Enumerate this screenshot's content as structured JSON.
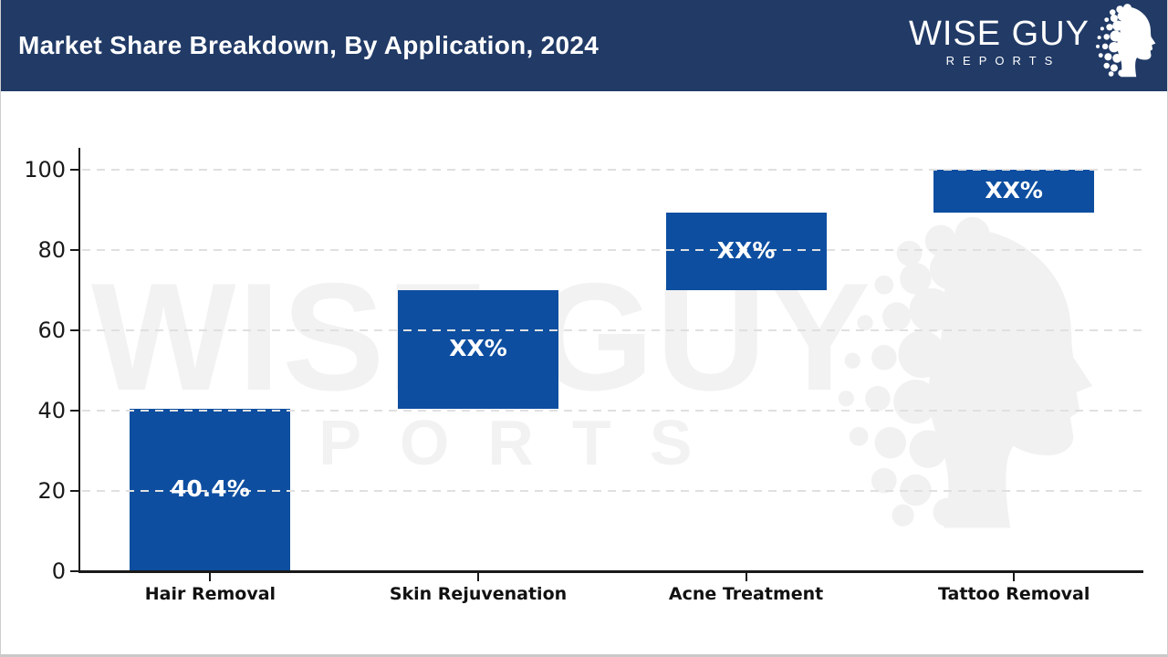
{
  "header": {
    "title": "Market Share Breakdown, By Application, 2024",
    "bg_color": "#213A66",
    "logo": {
      "line1": "WISE GUY",
      "line2": "REPORTS"
    }
  },
  "watermark": {
    "line1": "WISE GUY",
    "line2": "REPORTS"
  },
  "chart_data": {
    "type": "bar",
    "subtype": "waterfall",
    "title": "Market Share Breakdown, By Application, 2024",
    "categories": [
      "Hair Removal",
      "Skin Rejuvenation",
      "Acne Treatment",
      "Tattoo Removal"
    ],
    "segments": [
      {
        "category": "Hair Removal",
        "start": 0,
        "end": 40.4,
        "label": "40.4%"
      },
      {
        "category": "Skin Rejuvenation",
        "start": 40.4,
        "end": 70,
        "label": "XX%"
      },
      {
        "category": "Acne Treatment",
        "start": 70,
        "end": 89.3,
        "label": "XX%"
      },
      {
        "category": "Tattoo Removal",
        "start": 89.3,
        "end": 100,
        "label": "XX%"
      }
    ],
    "xlabel": "",
    "ylabel": "",
    "ylim": [
      0,
      105
    ],
    "yticks": [
      0,
      20,
      40,
      60,
      80,
      100
    ],
    "grid": "dashed-horizontal",
    "legend": "none",
    "bar_color": "#0D4EA0",
    "bar_label_color": "#FFFFFF",
    "axis_color": "#1a1a1a"
  }
}
